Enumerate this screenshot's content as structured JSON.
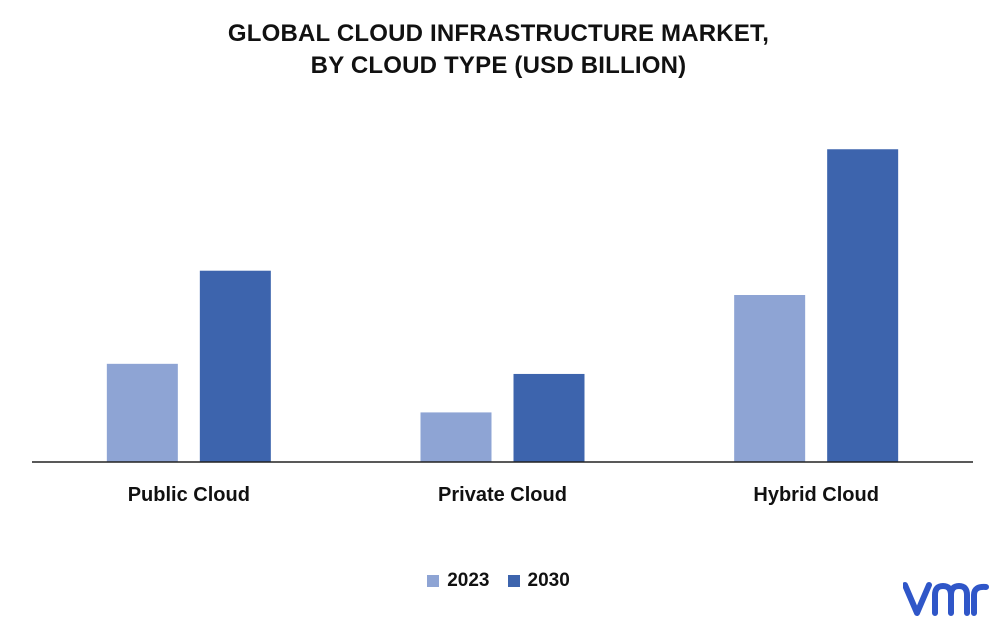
{
  "chart_data": {
    "type": "bar",
    "title_lines": [
      "GLOBAL CLOUD INFRASTRUCTURE MARKET,",
      "BY CLOUD TYPE (USD BILLION)"
    ],
    "categories": [
      "Public Cloud",
      "Private Cloud",
      "Hybrid Cloud"
    ],
    "series": [
      {
        "name": "2023",
        "color": "#8EA4D4",
        "values": [
          97,
          49,
          165
        ]
      },
      {
        "name": "2030",
        "color": "#3D64AD",
        "values": [
          189,
          87,
          309
        ]
      }
    ],
    "ylim": [
      0,
      330
    ],
    "grid": false,
    "legend_position": "bottom-center",
    "xlabel": "",
    "ylabel": ""
  },
  "logo": {
    "text": "vmr",
    "color": "#2F56C8"
  }
}
